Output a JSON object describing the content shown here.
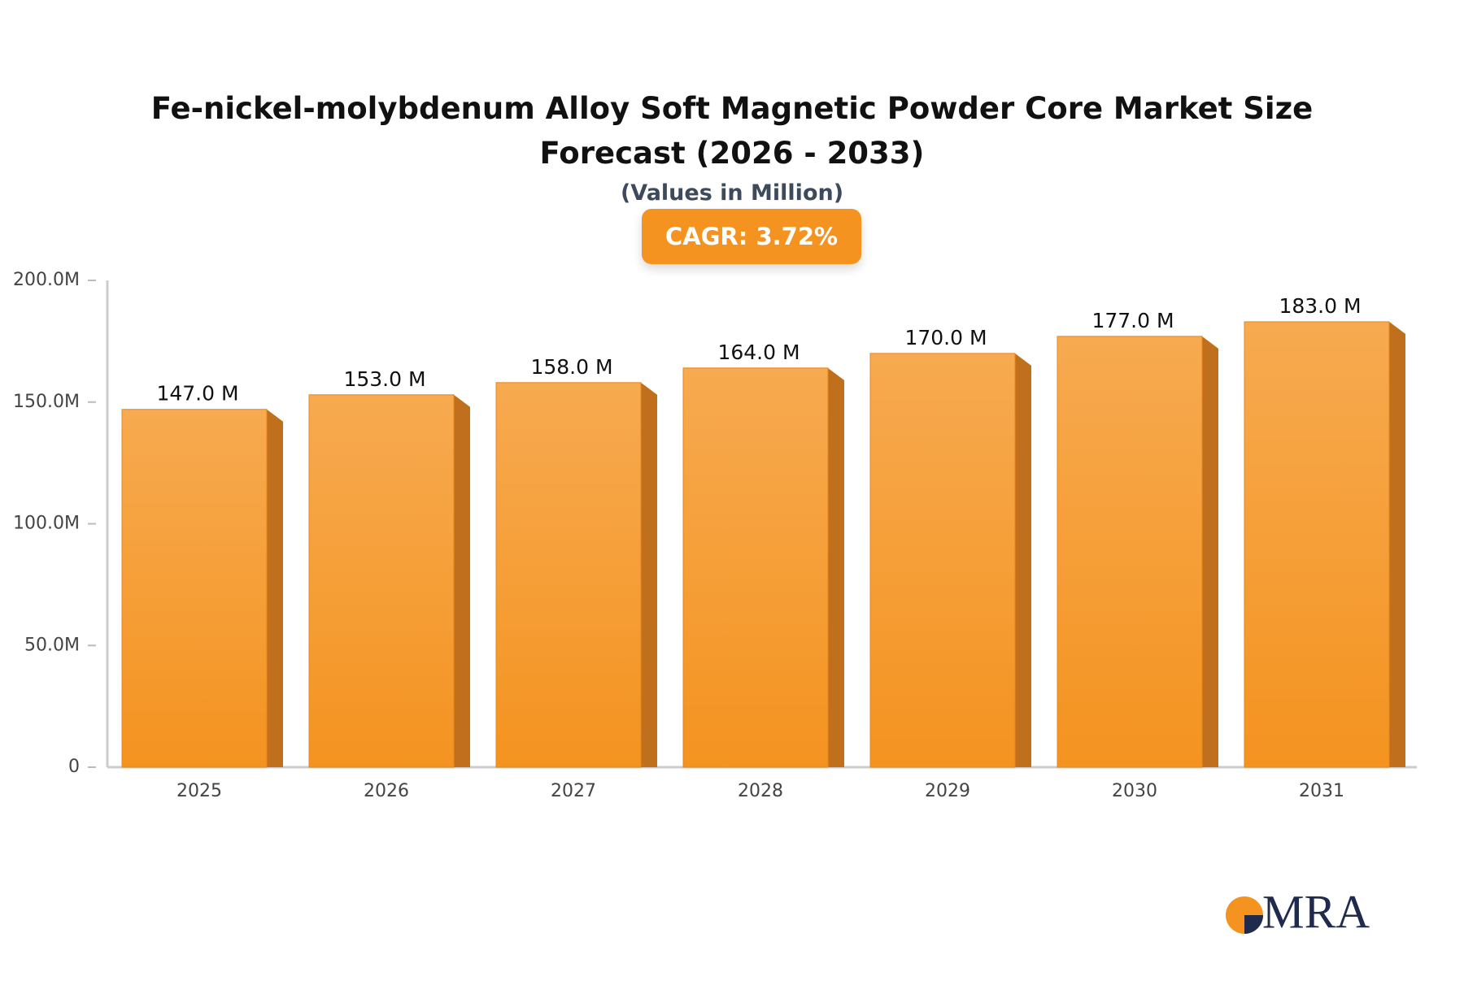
{
  "chart_data": {
    "type": "bar",
    "title": "Fe-nickel-molybdenum Alloy Soft Magnetic Powder Core Market Size Forecast (2026 - 2033)",
    "subtitle": "(Values in Million)",
    "annotation": "CAGR: 3.72%",
    "categories": [
      "2025",
      "2026",
      "2027",
      "2028",
      "2029",
      "2030",
      "2031"
    ],
    "values": [
      147,
      153,
      158,
      164,
      170,
      177,
      183
    ],
    "value_labels": [
      "147.0 M",
      "153.0 M",
      "158.0 M",
      "164.0 M",
      "170.0 M",
      "177.0 M",
      "183.0 M"
    ],
    "color": "#f49320",
    "ylim": [
      0,
      200
    ],
    "yticks": [
      0,
      {
        "value": 50,
        "label": "50.0M"
      },
      {
        "value": 100,
        "label": "100.0M"
      },
      {
        "value": 150,
        "label": "150.0M"
      },
      {
        "value": 200,
        "label": "200.0M"
      }
    ],
    "grid": false
  },
  "logo": "MRA"
}
